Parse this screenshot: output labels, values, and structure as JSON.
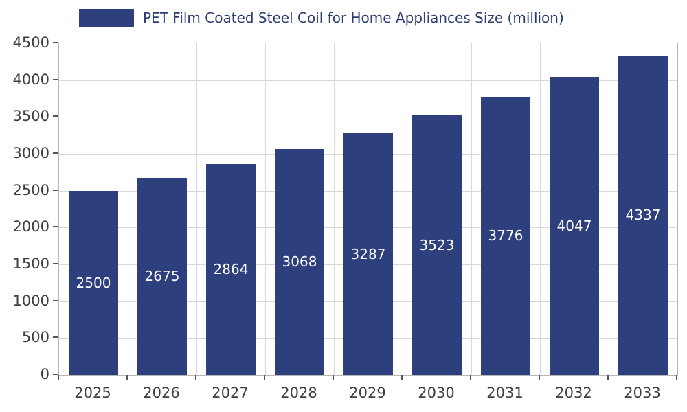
{
  "chart_data": {
    "type": "bar",
    "title": "PET Film Coated Steel Coil for Home Appliances Size (million)",
    "categories": [
      "2025",
      "2026",
      "2027",
      "2028",
      "2029",
      "2030",
      "2031",
      "2032",
      "2033"
    ],
    "values": [
      2500,
      2675,
      2864,
      3068,
      3287,
      3523,
      3776,
      4047,
      4337
    ],
    "value_labels": [
      "2500",
      "2675",
      "2864",
      "3068",
      "3287",
      "3523",
      "3776",
      "4047",
      "4337"
    ],
    "xlabel": "",
    "ylabel": "",
    "ylim": [
      0,
      4500
    ],
    "yticks": [
      0,
      500,
      1000,
      1500,
      2000,
      2500,
      3000,
      3500,
      4000,
      4500
    ],
    "ytick_labels": [
      "0",
      "500",
      "1000",
      "1500",
      "2000",
      "2500",
      "3000",
      "3500",
      "4000",
      "4500"
    ],
    "grid": true,
    "legend_position": "top"
  },
  "legend": {
    "label": "PET Film Coated Steel Coil for Home Appliances Size (million)"
  },
  "colors": {
    "bar": "#2e3f7d",
    "value_label": "#ffffff",
    "grid": "#d9d9d9",
    "axis_text": "#3f3f3f",
    "legend_text": "#2d3e75"
  }
}
